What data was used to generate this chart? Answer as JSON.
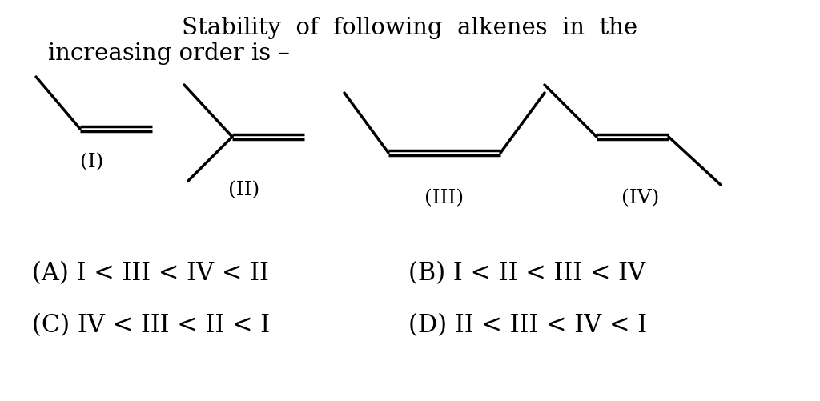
{
  "title_line1": "Stability  of  following  alkenes  in  the",
  "title_line2": "increasing order is –",
  "bg_color": "#ffffff",
  "text_color": "#000000",
  "options": [
    "(A) I < III < IV < II",
    "(B) I < II < III < IV",
    "(C) IV < III < II < I",
    "(D) II < III < IV < I"
  ],
  "labels": [
    "(I)",
    "(II)",
    "(III)",
    "(IV)"
  ],
  "lw": 2.2,
  "figsize": [
    10.24,
    5.01
  ],
  "dpi": 100
}
